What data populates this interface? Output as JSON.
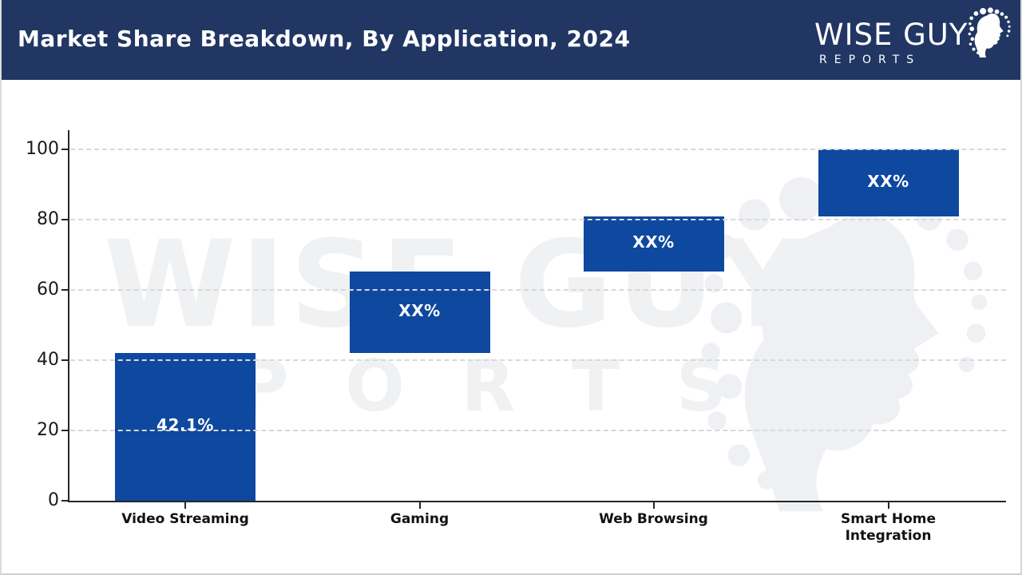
{
  "header": {
    "title": "Market Share Breakdown, By Application, 2024",
    "logo": {
      "line1": "WISE GUY",
      "line2": "REPORTS"
    }
  },
  "watermark": {
    "line1": "WISE GUY",
    "line2": "P O R T S"
  },
  "colors": {
    "header_bg": "#213663",
    "title_text": "#ffffff",
    "bar": "#0e489f",
    "bar_label": "#ffffff",
    "grid": "#d9d9d9",
    "axis": "#262626",
    "tick_label": "#1a1a1a",
    "category_label": "#111111",
    "watermark": "#f0f1f3"
  },
  "chart_data": {
    "type": "bar",
    "subtype": "waterfall",
    "title": "Market Share Breakdown, By Application, 2024",
    "categories": [
      "Video Streaming",
      "Gaming",
      "Web Browsing",
      "Smart Home Integration"
    ],
    "x_tick_labels": [
      "Video Streaming",
      "Gaming",
      "Web Browsing",
      "Smart Home\nIntegration"
    ],
    "segments": [
      {
        "category": "Video Streaming",
        "start": 0,
        "end": 42.1,
        "label": "42.1%"
      },
      {
        "category": "Gaming",
        "start": 42.1,
        "end": 65.2,
        "label": "XX%"
      },
      {
        "category": "Web Browsing",
        "start": 65.2,
        "end": 81.0,
        "label": "XX%"
      },
      {
        "category": "Smart Home Integration",
        "start": 81.0,
        "end": 100.0,
        "label": "XX%"
      }
    ],
    "yticks": [
      0,
      20,
      40,
      60,
      80,
      100
    ],
    "ylim": [
      0,
      105.5
    ],
    "xlabel": "",
    "ylabel": "",
    "grid": "horizontal-dashed-above-bars",
    "legend": "none",
    "bar_color": "#0e489f",
    "label_color": "#ffffff"
  }
}
